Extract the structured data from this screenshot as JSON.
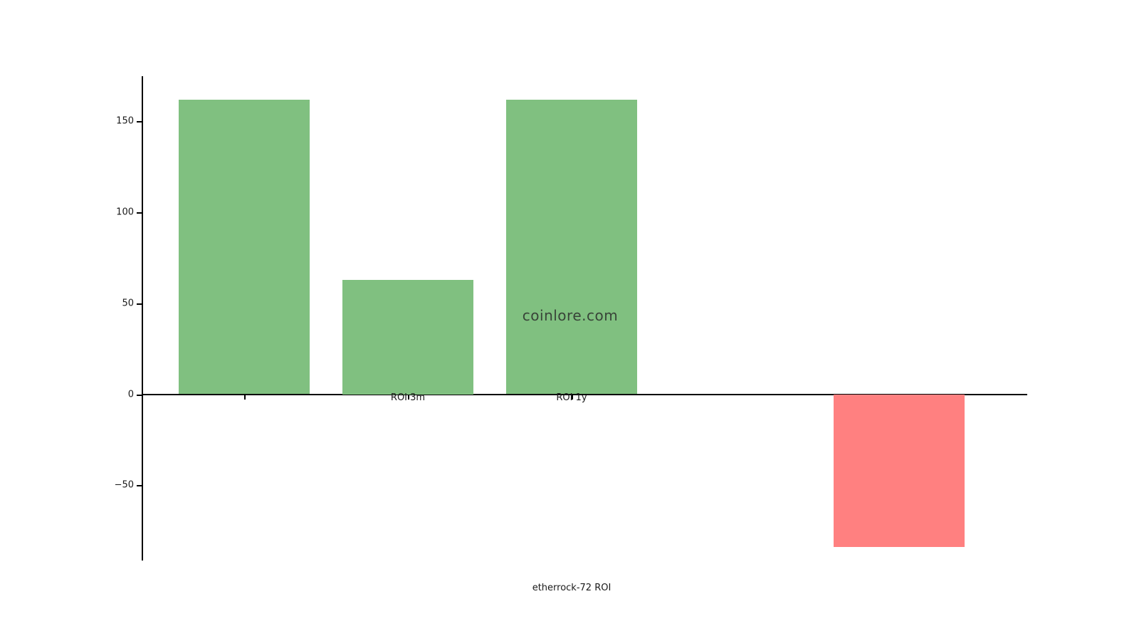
{
  "chart_data": {
    "type": "bar",
    "title": "etherrock-72 ROI",
    "watermark": "coinlore.com",
    "categories": [
      "",
      "ROI 3m",
      "ROI 1y",
      "",
      ""
    ],
    "values": [
      161.7,
      62.8,
      161.7,
      0,
      -83.9
    ],
    "bar_colors": [
      "#80c080",
      "#80c080",
      "#80c080",
      "#80c080",
      "#ff8080"
    ],
    "positive_color": "#80c080",
    "negative_color": "#ff8080",
    "xlabel": "",
    "ylabel": "",
    "ylim": [
      -91,
      175
    ],
    "grid": false,
    "legend_position": "none",
    "yticks": [
      {
        "value": 150,
        "label": "150"
      },
      {
        "value": 100,
        "label": "100"
      },
      {
        "value": 50,
        "label": "50"
      },
      {
        "value": 0,
        "label": "0"
      },
      {
        "value": -50,
        "label": "−50"
      }
    ],
    "x_ticks_visible": [
      0,
      1,
      2
    ]
  }
}
